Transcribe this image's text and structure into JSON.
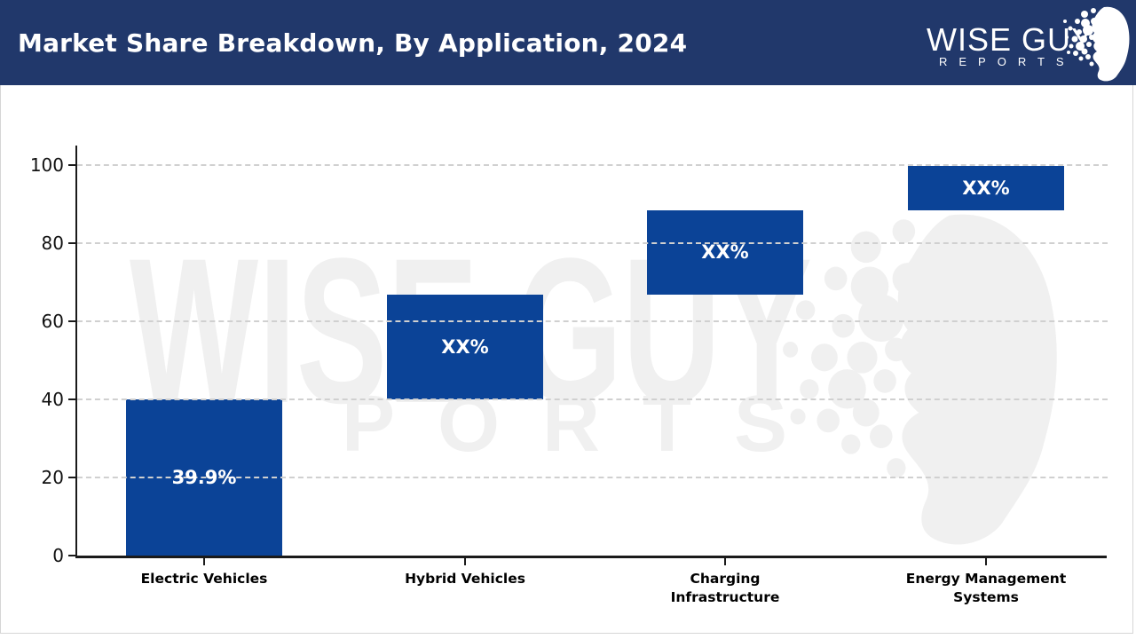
{
  "header": {
    "title": "Market Share Breakdown, By Application, 2024",
    "logo": {
      "wordmark": "WISE GUY",
      "subtext": "REPORTS",
      "icon": "dotted-face-profile"
    }
  },
  "watermark": {
    "line1": "WISE GUY",
    "line2": "PORTS"
  },
  "colors": {
    "header_bg": "#21386B",
    "bar": "#0B4397",
    "bar_label": "#FFFFFF",
    "grid": "#D0D0D0",
    "axis": "#1A1A1A",
    "watermark": "#F0F0F0",
    "card_border": "#D5D5D5"
  },
  "chart_data": {
    "type": "bar",
    "subtype": "waterfall",
    "title": "Market Share Breakdown, By Application, 2024",
    "categories": [
      "Electric Vehicles",
      "Hybrid Vehicles",
      "Charging Infrastructure",
      "Energy Management Systems"
    ],
    "category_lines": [
      [
        "Electric Vehicles"
      ],
      [
        "Hybrid Vehicles"
      ],
      [
        "Charging",
        "Infrastructure"
      ],
      [
        "Energy Management",
        "Systems"
      ]
    ],
    "bars": [
      {
        "category": "Electric Vehicles",
        "start": 0,
        "end": 39.9,
        "label": "39.9%"
      },
      {
        "category": "Hybrid Vehicles",
        "start": 39.9,
        "end": 66.9,
        "label": "XX%"
      },
      {
        "category": "Charging Infrastructure",
        "start": 66.9,
        "end": 88.5,
        "label": "XX%"
      },
      {
        "category": "Energy Management Systems",
        "start": 88.5,
        "end": 99.7,
        "label": "XX%"
      }
    ],
    "xlabel": "",
    "ylabel": "",
    "ylim": [
      0,
      100
    ],
    "yticks": [
      0,
      20,
      40,
      60,
      80,
      100
    ],
    "grid": "horizontal-dashed-over-bars",
    "legend": "none"
  }
}
